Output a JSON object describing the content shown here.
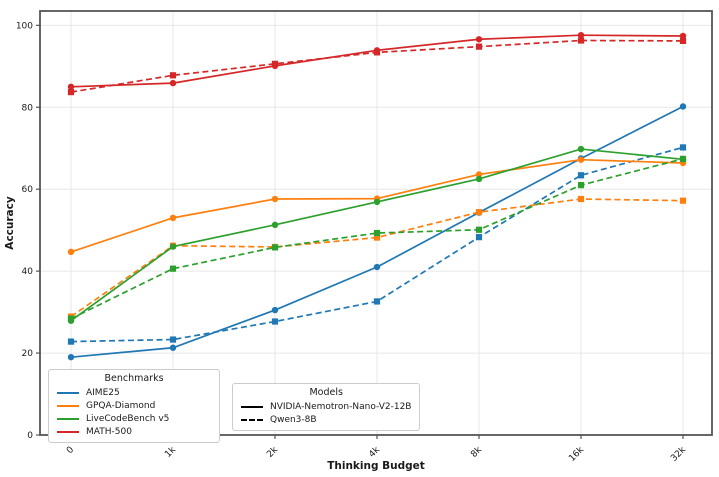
{
  "chart_data": {
    "type": "line",
    "title": "",
    "xlabel": "Thinking Budget",
    "ylabel": "Accuracy",
    "x_categories": [
      "0",
      "1k",
      "2k",
      "4k",
      "8k",
      "16k",
      "32k"
    ],
    "y_ticks": [
      0,
      20,
      40,
      60,
      80,
      100
    ],
    "ylim": [
      0,
      103.5
    ],
    "grid": true,
    "legend_position": "lower-left",
    "benchmarks": [
      {
        "name": "AIME25",
        "color": "#1f77b4"
      },
      {
        "name": "GPQA-Diamond",
        "color": "#ff7f0e"
      },
      {
        "name": "LiveCodeBench v5",
        "color": "#2ca02c"
      },
      {
        "name": "MATH-500",
        "color": "#d62728"
      }
    ],
    "models": [
      {
        "name": "NVIDIA-Nemotron-Nano-V2-12B",
        "linestyle": "solid",
        "marker": "circle"
      },
      {
        "name": "Qwen3-8B",
        "linestyle": "dashed",
        "marker": "square"
      }
    ],
    "series": [
      {
        "benchmark": "AIME25",
        "model": "NVIDIA-Nemotron-Nano-V2-12B",
        "values": [
          19.0,
          21.3,
          30.5,
          41.0,
          54.3,
          67.5,
          80.2
        ]
      },
      {
        "benchmark": "AIME25",
        "model": "Qwen3-8B",
        "values": [
          22.8,
          23.3,
          27.7,
          32.6,
          48.3,
          63.4,
          70.2
        ]
      },
      {
        "benchmark": "GPQA-Diamond",
        "model": "NVIDIA-Nemotron-Nano-V2-12B",
        "values": [
          44.7,
          53.0,
          57.6,
          57.7,
          63.6,
          67.2,
          66.4
        ]
      },
      {
        "benchmark": "GPQA-Diamond",
        "model": "Qwen3-8B",
        "values": [
          28.9,
          46.2,
          45.9,
          48.2,
          54.4,
          57.6,
          57.2
        ]
      },
      {
        "benchmark": "LiveCodeBench v5",
        "model": "NVIDIA-Nemotron-Nano-V2-12B",
        "values": [
          27.9,
          46.0,
          51.3,
          56.9,
          62.5,
          69.8,
          67.3
        ]
      },
      {
        "benchmark": "LiveCodeBench v5",
        "model": "Qwen3-8B",
        "values": [
          28.4,
          40.6,
          45.8,
          49.3,
          50.1,
          61.0,
          67.4
        ]
      },
      {
        "benchmark": "MATH-500",
        "model": "NVIDIA-Nemotron-Nano-V2-12B",
        "values": [
          85.0,
          85.9,
          90.1,
          93.9,
          96.6,
          97.6,
          97.4
        ]
      },
      {
        "benchmark": "MATH-500",
        "model": "Qwen3-8B",
        "values": [
          83.7,
          87.8,
          90.6,
          93.4,
          94.8,
          96.3,
          96.2
        ]
      }
    ],
    "legend": {
      "benchmarks_title": "Benchmarks",
      "models_title": "Models"
    },
    "colors": {
      "grid": "#e7e7e7",
      "spine": "#555555",
      "text": "#1a1a1a"
    }
  }
}
